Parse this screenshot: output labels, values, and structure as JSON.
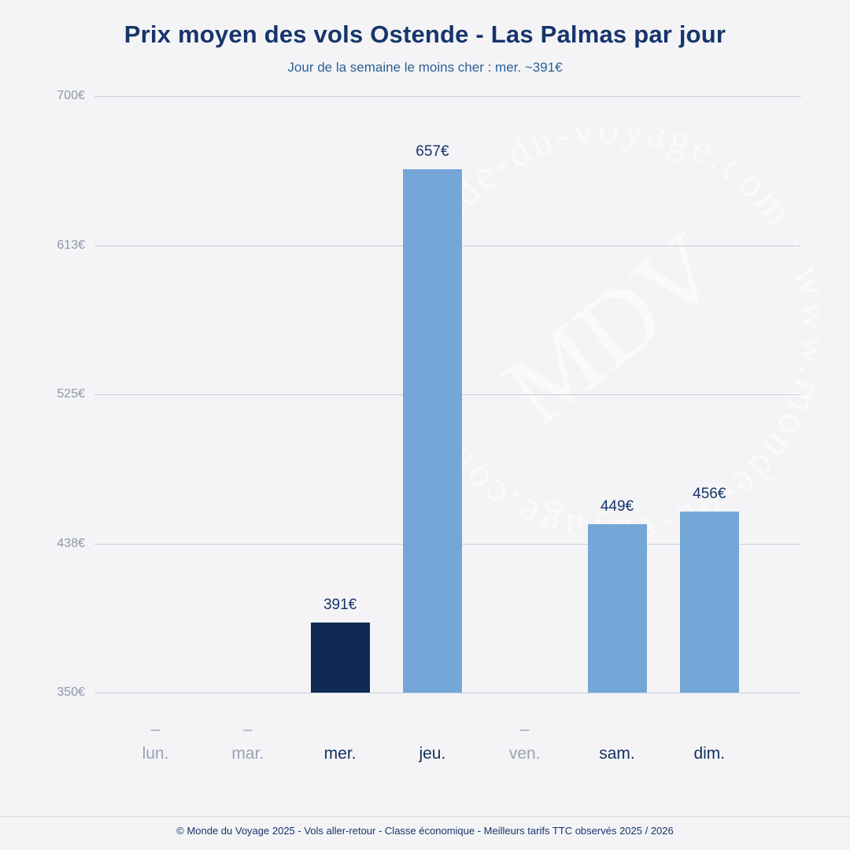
{
  "title": "Prix moyen des vols Ostende - Las Palmas par jour",
  "subtitle": "Jour de la semaine le moins cher : mer. ~391€",
  "footer": "© Monde du Voyage 2025 - Vols aller-retour - Classe économique - Meilleurs tarifs TTC observés 2025 / 2026",
  "watermark": {
    "ring_text": "www.monde-du-voyage.com · www.monde-du-voyage.com ·",
    "center_text": "MDV"
  },
  "colors": {
    "background": "#f4f4f6",
    "title": "#16356b",
    "subtitle": "#2c5f94",
    "axis_label": "#8d96a8",
    "gridline": "#c9cfda",
    "bar": "#74a7d8",
    "bar_highlight": "#0e2a52",
    "day_active": "#12305e",
    "day_inactive": "#98a2b3"
  },
  "chart_data": {
    "type": "bar",
    "title": "Prix moyen des vols Ostende - Las Palmas par jour",
    "xlabel": "",
    "ylabel": "",
    "categories": [
      "lun.",
      "mar.",
      "mer.",
      "jeu.",
      "ven.",
      "sam.",
      "dim."
    ],
    "values": [
      null,
      null,
      391,
      657,
      null,
      449,
      456
    ],
    "value_labels": [
      "",
      "",
      "391€",
      "657€",
      "",
      "449€",
      "456€"
    ],
    "highlight_index": 2,
    "no_data_marker": "–",
    "currency": "€",
    "ylim": [
      350,
      700
    ],
    "yticks": [
      {
        "value": 350,
        "label": "350€"
      },
      {
        "value": 437.5,
        "label": "438€"
      },
      {
        "value": 525,
        "label": "525€"
      },
      {
        "value": 612.5,
        "label": "613€"
      },
      {
        "value": 700,
        "label": "700€"
      }
    ],
    "grid": true,
    "legend": false
  }
}
